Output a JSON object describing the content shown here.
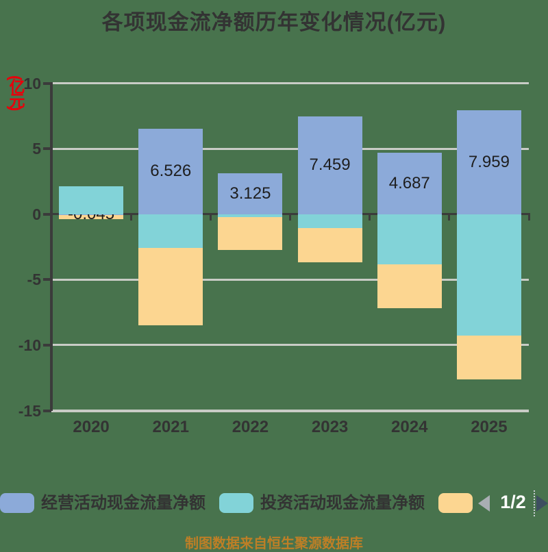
{
  "title": "各项现金流净额历年变化情况(亿元)",
  "y_axis": {
    "unit_label": "(亿元)",
    "ticks": [
      "10",
      "5",
      "0",
      "-5",
      "-10",
      "-15"
    ]
  },
  "source_note": "制图数据来自恒生聚源数据库",
  "pagination": {
    "label": "1/2"
  },
  "colors": {
    "background": "#48734D",
    "operating_bar": "#8CAAD9",
    "investing_bar": "#82D3D8",
    "financing_bar": "#FCD691",
    "axis_dark": "#3B3B3B",
    "grid_light": "#C9CCC6",
    "text_dark": "#333333",
    "unit_label_red": "#E8000B",
    "source_note_orange": "#BE7F26",
    "page_text_white": "#FFFFFF",
    "prev_arrow_gray": "#A9AEB3",
    "next_arrow_dark": "#3E4E60"
  },
  "chart_data": {
    "type": "bar",
    "stacked": true,
    "title": "各项现金流净额历年变化情况(亿元)",
    "categories": [
      "2020",
      "2021",
      "2022",
      "2023",
      "2024",
      "2025"
    ],
    "series": [
      {
        "name": "经营活动现金流量净额",
        "color": "#8CAAD9",
        "values": [
          -0.045,
          6.526,
          3.125,
          7.459,
          4.687,
          7.959
        ],
        "data_labels": [
          "-0.045",
          "6.526",
          "3.125",
          "7.459",
          "4.687",
          "7.959"
        ]
      },
      {
        "name": "投资活动现金流量净额",
        "color": "#82D3D8",
        "values": [
          2.15,
          -2.57,
          -0.25,
          -1.05,
          -3.84,
          -9.28
        ],
        "data_labels": []
      },
      {
        "name": "",
        "color": "#FCD691",
        "values": [
          -0.35,
          -5.94,
          -2.49,
          -2.65,
          -3.35,
          -3.35
        ],
        "data_labels": []
      }
    ],
    "ylim": [
      -15,
      10
    ],
    "yticks": [
      10,
      5,
      0,
      -5,
      -10,
      -15
    ],
    "grid": true,
    "legend_position": "bottom"
  }
}
